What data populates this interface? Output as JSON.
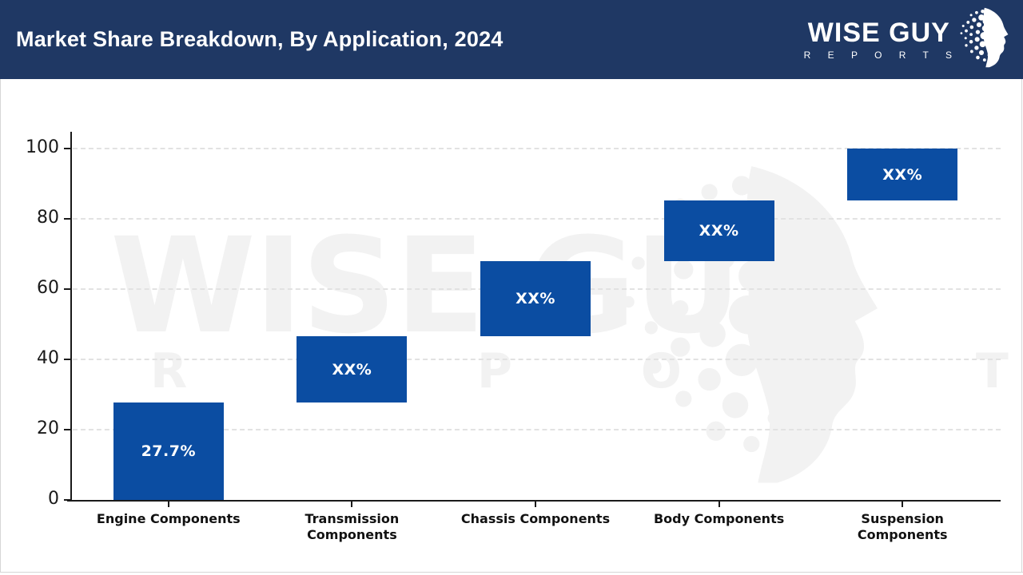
{
  "header": {
    "title": "Market Share Breakdown, By Application, 2024",
    "logo": {
      "name": "WISE GUY",
      "sub": "R E P O R T S"
    }
  },
  "watermark": {
    "line1": "WISE GUY",
    "line2": "R E P O R T S"
  },
  "colors": {
    "header_bg": "#1f3864",
    "bar": "#0b4da2",
    "grid": "#e2e2e2",
    "axis": "#1a1a1a",
    "watermark": "#f2f2f2"
  },
  "chart_data": {
    "type": "bar",
    "subtype": "waterfall-floating-bars",
    "title": "Market Share Breakdown, By Application, 2024",
    "categories": [
      "Engine Components",
      "Transmission\nComponents",
      "Chassis Components",
      "Body Components",
      "Suspension\nComponents"
    ],
    "segments": [
      {
        "start": 0,
        "end": 27.7,
        "label": "27.7%"
      },
      {
        "start": 27.7,
        "end": 46.5,
        "label": "XX%"
      },
      {
        "start": 46.5,
        "end": 68.0,
        "label": "XX%"
      },
      {
        "start": 68.0,
        "end": 85.2,
        "label": "XX%"
      },
      {
        "start": 85.2,
        "end": 100,
        "label": "XX%"
      }
    ],
    "yticks": [
      0,
      20,
      40,
      60,
      80,
      100
    ],
    "ylim": [
      0,
      100
    ],
    "xlabel": "",
    "ylabel": "",
    "grid": "horizontal-dashed",
    "legend": "none",
    "bar_color": "#0b4da2"
  }
}
